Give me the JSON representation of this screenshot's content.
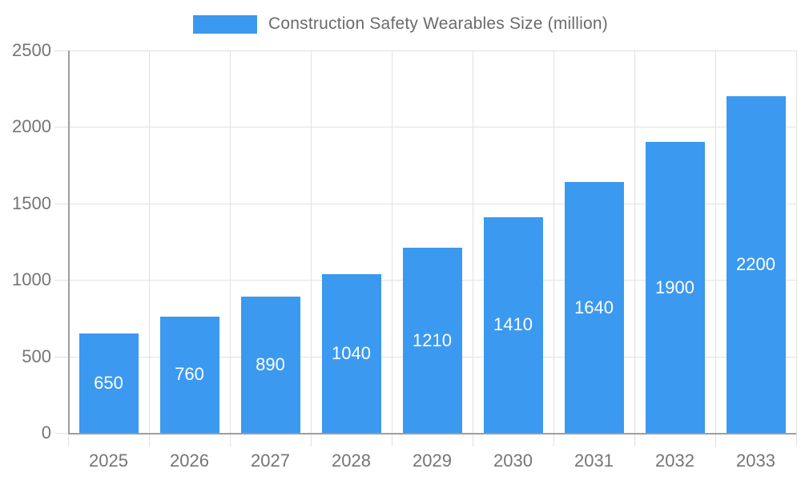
{
  "chart_data": {
    "type": "bar",
    "title": "Construction Safety Wearables Size (million)",
    "legend_label": "Construction Safety Wearables Size (million)",
    "legend_position": "top-center",
    "categories": [
      "2025",
      "2026",
      "2027",
      "2028",
      "2029",
      "2030",
      "2031",
      "2032",
      "2033"
    ],
    "values": [
      650,
      760,
      890,
      1040,
      1210,
      1410,
      1640,
      1900,
      2200
    ],
    "xlabel": "",
    "ylabel": "",
    "ylim": [
      0,
      2500
    ],
    "yticks": [
      0,
      500,
      1000,
      1500,
      2000,
      2500
    ],
    "grid": true,
    "value_labels": "centered-inside-bars"
  },
  "colors": {
    "background": "#ffffff",
    "bar": "#3b99f0",
    "grid": "#e2e2e2",
    "axis": "#9e9e9e",
    "tick_text": "#757575",
    "legend_text": "#6b6b6b",
    "bar_value_text": "#ffffff"
  }
}
